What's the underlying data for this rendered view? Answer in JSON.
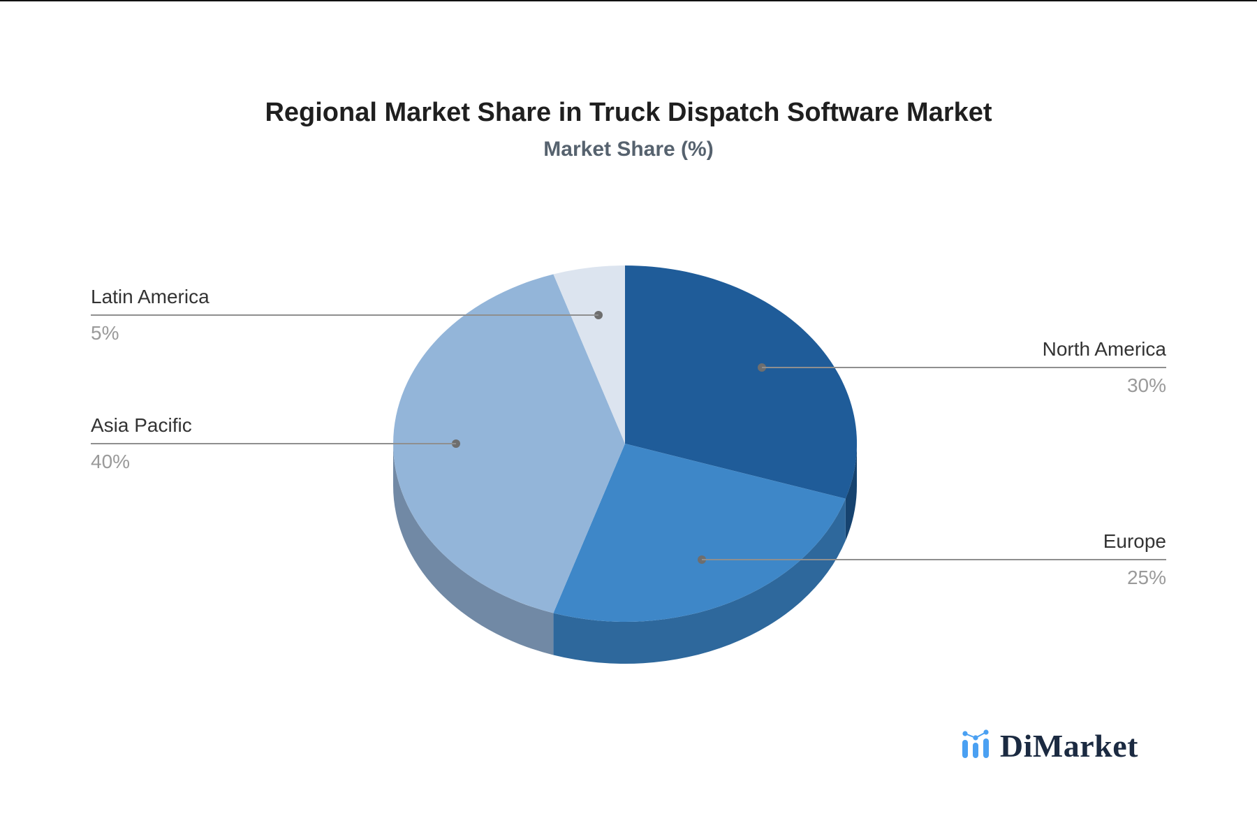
{
  "header": {
    "title": "Regional Market Share in Truck Dispatch Software Market",
    "subtitle": "Market Share (%)"
  },
  "chart_data": {
    "type": "pie",
    "style": "3d-pie",
    "title": "Regional Market Share in Truck Dispatch Software Market",
    "subtitle": "Market Share (%)",
    "unit": "%",
    "start_angle_deg": 90,
    "direction": "clockwise",
    "legend": "none",
    "categories": [
      "North America",
      "Europe",
      "Asia Pacific",
      "Latin America"
    ],
    "values": [
      30,
      25,
      40,
      5
    ],
    "slices": [
      {
        "label": "North America",
        "value": 30,
        "display": "30%",
        "color": "#1F5C99",
        "side_color": "#16436F"
      },
      {
        "label": "Europe",
        "value": 25,
        "display": "25%",
        "color": "#3E87C8",
        "side_color": "#2E689C"
      },
      {
        "label": "Asia Pacific",
        "value": 40,
        "display": "40%",
        "color": "#93B5D9",
        "side_color": "#7189A5"
      },
      {
        "label": "Latin America",
        "value": 5,
        "display": "5%",
        "color": "#DCE4EF",
        "side_color": "#B9C6DA"
      }
    ]
  },
  "branding": {
    "name": "DiMarket",
    "icon": "bar-line-chart-icon"
  },
  "colors": {
    "title": "#1F1F1F",
    "subtitle": "#56626E",
    "label": "#333333",
    "value": "#9A9A9A",
    "rule": "#8F8F8F",
    "dot": "#6E6E6E",
    "brand_text": "#1B2A41",
    "brand_icon": "#4AA0F2",
    "top_border": "#111111"
  }
}
